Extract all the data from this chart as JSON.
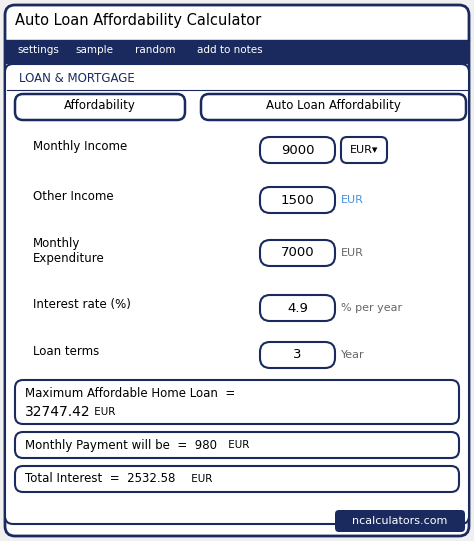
{
  "title": "Auto Loan Affordability Calculator",
  "nav_items": [
    "settings",
    "sample",
    "random",
    "add to notes"
  ],
  "section_title": "LOAN & MORTGAGE",
  "tab1": "Affordability",
  "tab2": "Auto Loan Affordability",
  "fields": [
    {
      "label": "Monthly Income",
      "value": "9000",
      "unit": "EUR▾",
      "unit_color": "#1a2a5e",
      "unit_box": true
    },
    {
      "label": "Other Income",
      "value": "1500",
      "unit": "EUR",
      "unit_color": "#4a90d9",
      "unit_box": false
    },
    {
      "label": "Monthly\nExpenditure",
      "value": "7000",
      "unit": "EUR",
      "unit_color": "#666666",
      "unit_box": false
    },
    {
      "label": "Interest rate (%)",
      "value": "4.9",
      "unit": "% per year",
      "unit_color": "#666666",
      "unit_box": false
    },
    {
      "label": "Loan terms",
      "value": "3",
      "unit": "Year",
      "unit_color": "#666666",
      "unit_box": false
    }
  ],
  "footer": "ncalculators.com",
  "bg_color": "#f0f0f0",
  "dark_blue": "#1a2a5e",
  "blue_link": "#4a90d9"
}
